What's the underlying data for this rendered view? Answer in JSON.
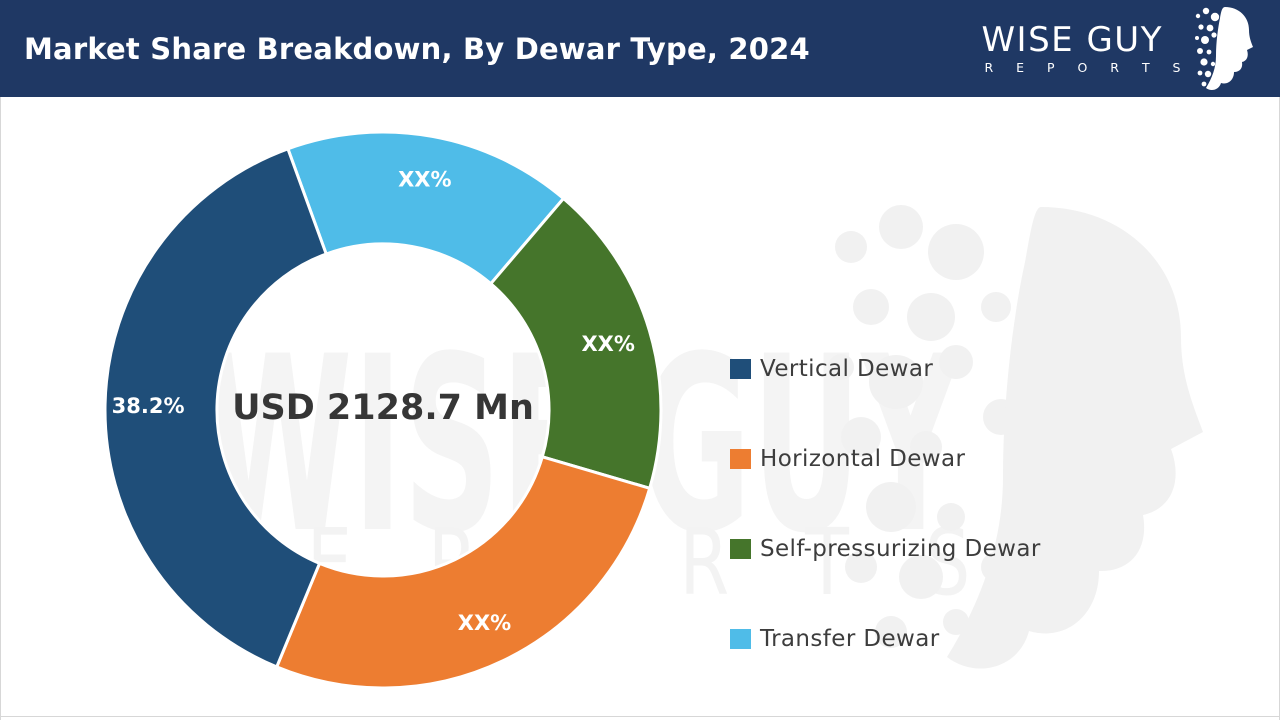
{
  "header": {
    "title": "Market Share Breakdown, By Dewar Type, 2024",
    "bg_color": "#1F3864",
    "logo": {
      "wordmark": "WISE GUY",
      "subtext": "R E P O R T S",
      "face_icon": "dotted-head-profile"
    }
  },
  "watermark": {
    "line1": "WISE GUY",
    "line2": "R E P O R T S"
  },
  "chart_data": {
    "type": "pie",
    "donut": true,
    "title": "Market Share Breakdown, By Dewar Type, 2024",
    "center_label": "USD 2128.7 Mn",
    "start_angle_deg": 110,
    "direction": "clockwise",
    "legend_position": "right",
    "segments": [
      {
        "name": "Transfer Dewar",
        "label": "XX%",
        "value_pct_est": 16.8,
        "color": "#4FBCE8"
      },
      {
        "name": "Self-pressurizing Dewar",
        "label": "XX%",
        "value_pct_est": 18.3,
        "color": "#45752B"
      },
      {
        "name": "Horizontal Dewar",
        "label": "XX%",
        "value_pct_est": 26.7,
        "color": "#ED7D31"
      },
      {
        "name": "Vertical Dewar",
        "label": "38.2%",
        "value_pct_est": 38.2,
        "color": "#1F4E79"
      }
    ]
  },
  "legend": {
    "items": [
      {
        "label": "Vertical Dewar",
        "color": "#1F4E79"
      },
      {
        "label": "Horizontal Dewar",
        "color": "#ED7D31"
      },
      {
        "label": "Self-pressurizing Dewar",
        "color": "#45752B"
      },
      {
        "label": "Transfer Dewar",
        "color": "#4FBCE8"
      }
    ]
  },
  "colors": {
    "header_bg": "#1F3864",
    "center_text": "#363636",
    "watermark": "#f4f4f4",
    "segment_divider": "#ffffff"
  }
}
